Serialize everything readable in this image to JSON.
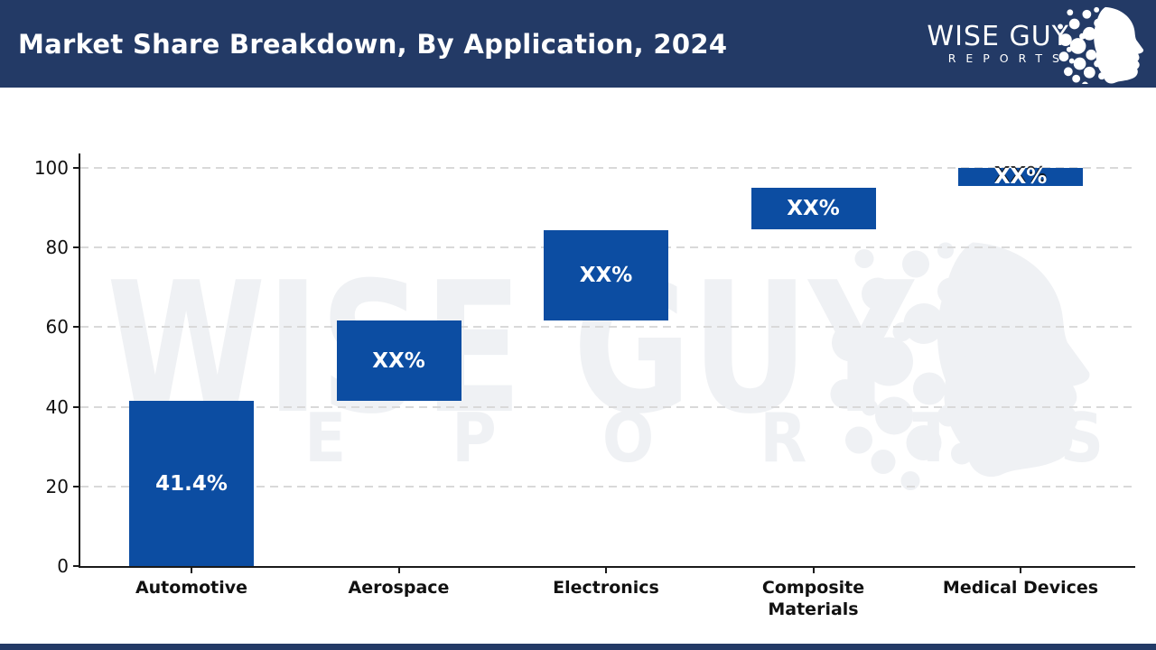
{
  "header": {
    "title": "Market Share Breakdown, By Application, 2024",
    "logo": {
      "line1": "WISE GUY",
      "line2": "REPORTS"
    }
  },
  "watermark": {
    "line1": "WISE GUY",
    "line2": "R E P O R T S"
  },
  "colors": {
    "header_bg": "#233a66",
    "header_text": "#ffffff",
    "bar": "#0c4da2",
    "bar_label": "#ffffff",
    "axis": "#1a1a1a",
    "grid": "#d9d9d9",
    "tick_label": "#111111",
    "watermark": "#eff1f4"
  },
  "chart_data": {
    "type": "bar",
    "subtype": "floating-waterfall",
    "title": "Market Share Breakdown, By Application, 2024",
    "categories": [
      "Automotive",
      "Aerospace",
      "Electronics",
      "Composite Materials",
      "Medical Devices"
    ],
    "segments": [
      {
        "category": "Automotive",
        "start": 0,
        "end": 41.4,
        "label": "41.4%"
      },
      {
        "category": "Aerospace",
        "start": 41.4,
        "end": 61.6,
        "label": "XX%"
      },
      {
        "category": "Electronics",
        "start": 61.6,
        "end": 84.4,
        "label": "XX%"
      },
      {
        "category": "Composite Materials",
        "start": 84.6,
        "end": 95.0,
        "label": "XX%"
      },
      {
        "category": "Medical Devices",
        "start": 95.4,
        "end": 100.0,
        "label": "XX%"
      }
    ],
    "ylim": [
      0,
      100
    ],
    "yticks": [
      0,
      20,
      40,
      60,
      80,
      100
    ],
    "grid": "horizontal-dashed",
    "legend": "none"
  }
}
